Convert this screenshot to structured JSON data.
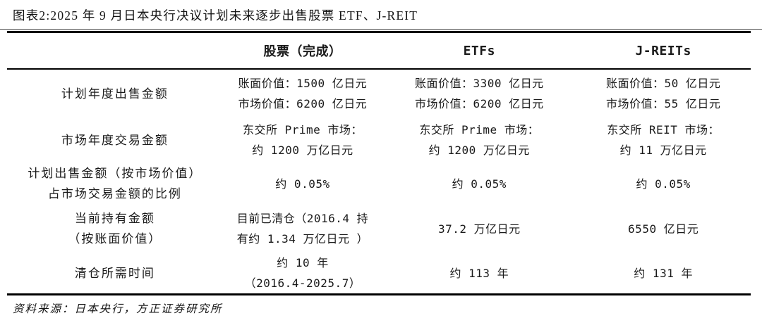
{
  "figure": {
    "title": "图表2:2025 年 9 月日本央行决议计划未来逐步出售股票 ETF、J-REIT",
    "source": "资料来源：日本央行，方正证券研究所"
  },
  "table": {
    "header": {
      "stock": "股票（完成）",
      "etfs": "ETFs",
      "jreits": "J-REITs"
    },
    "rows": [
      {
        "label": [
          "计划年度出售金额"
        ],
        "stock": [
          "账面价值：1500 亿日元",
          "市场价值：6200 亿日元"
        ],
        "etfs": [
          "账面价值：3300 亿日元",
          "市场价值：6200 亿日元"
        ],
        "jreits": [
          "账面价值：50 亿日元",
          "市场价值：55 亿日元"
        ]
      },
      {
        "label": [
          "市场年度交易金额"
        ],
        "stock": [
          "东交所 Prime 市场：",
          "约 1200 万亿日元"
        ],
        "etfs": [
          "东交所 Prime 市场：",
          "约 1200 万亿日元"
        ],
        "jreits": [
          "东交所 REIT 市场：",
          "约 11 万亿日元"
        ]
      },
      {
        "label": [
          "计划出售金额（按市场价值）",
          "占市场交易金额的比例"
        ],
        "stock": [
          "约 0.05%"
        ],
        "etfs": [
          "约 0.05%"
        ],
        "jreits": [
          "约 0.05%"
        ]
      },
      {
        "label": [
          "当前持有金额",
          "（按账面价值）"
        ],
        "stock": [
          "目前已清仓（2016.4 持",
          "有约 1.34 万亿日元 ）"
        ],
        "etfs": [
          "37.2 万亿日元"
        ],
        "jreits": [
          "6550 亿日元"
        ]
      },
      {
        "label": [
          "清仓所需时间"
        ],
        "stock": [
          "约 10 年",
          "（2016.4-2025.7）"
        ],
        "etfs": [
          "约 113 年"
        ],
        "jreits": [
          "约 131 年"
        ]
      }
    ]
  },
  "colors": {
    "text": "#1a1a1a",
    "rule": "#000000",
    "background": "#ffffff"
  }
}
